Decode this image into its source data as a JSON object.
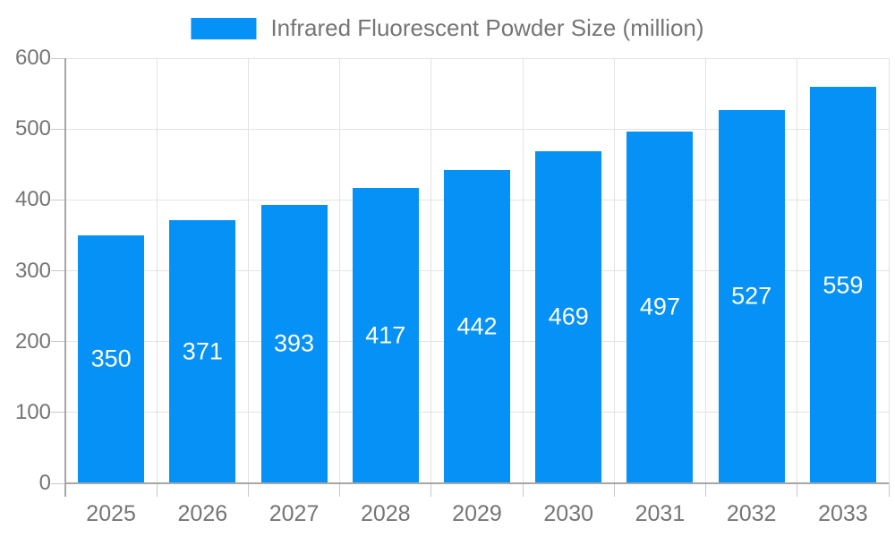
{
  "chart_data": {
    "type": "bar",
    "title": "",
    "legend": "Infrared Fluorescent Powder Size (million)",
    "legend_position": "top",
    "categories": [
      "2025",
      "2026",
      "2027",
      "2028",
      "2029",
      "2030",
      "2031",
      "2032",
      "2033"
    ],
    "values": [
      350,
      371,
      393,
      417,
      442,
      469,
      497,
      527,
      559
    ],
    "value_labels_shown": true,
    "xlabel": "",
    "ylabel": "",
    "ylim": [
      0,
      600
    ],
    "yticks": [
      0,
      100,
      200,
      300,
      400,
      500,
      600
    ],
    "grid": true,
    "colors": {
      "bar": "#0591F5",
      "value_label": "#ffffff",
      "axis_text": "#757575",
      "axis_line": "#a6a6a6",
      "gridline": "#e3e3e3",
      "tick": "#c9c9c9",
      "background": "#ffffff"
    }
  }
}
